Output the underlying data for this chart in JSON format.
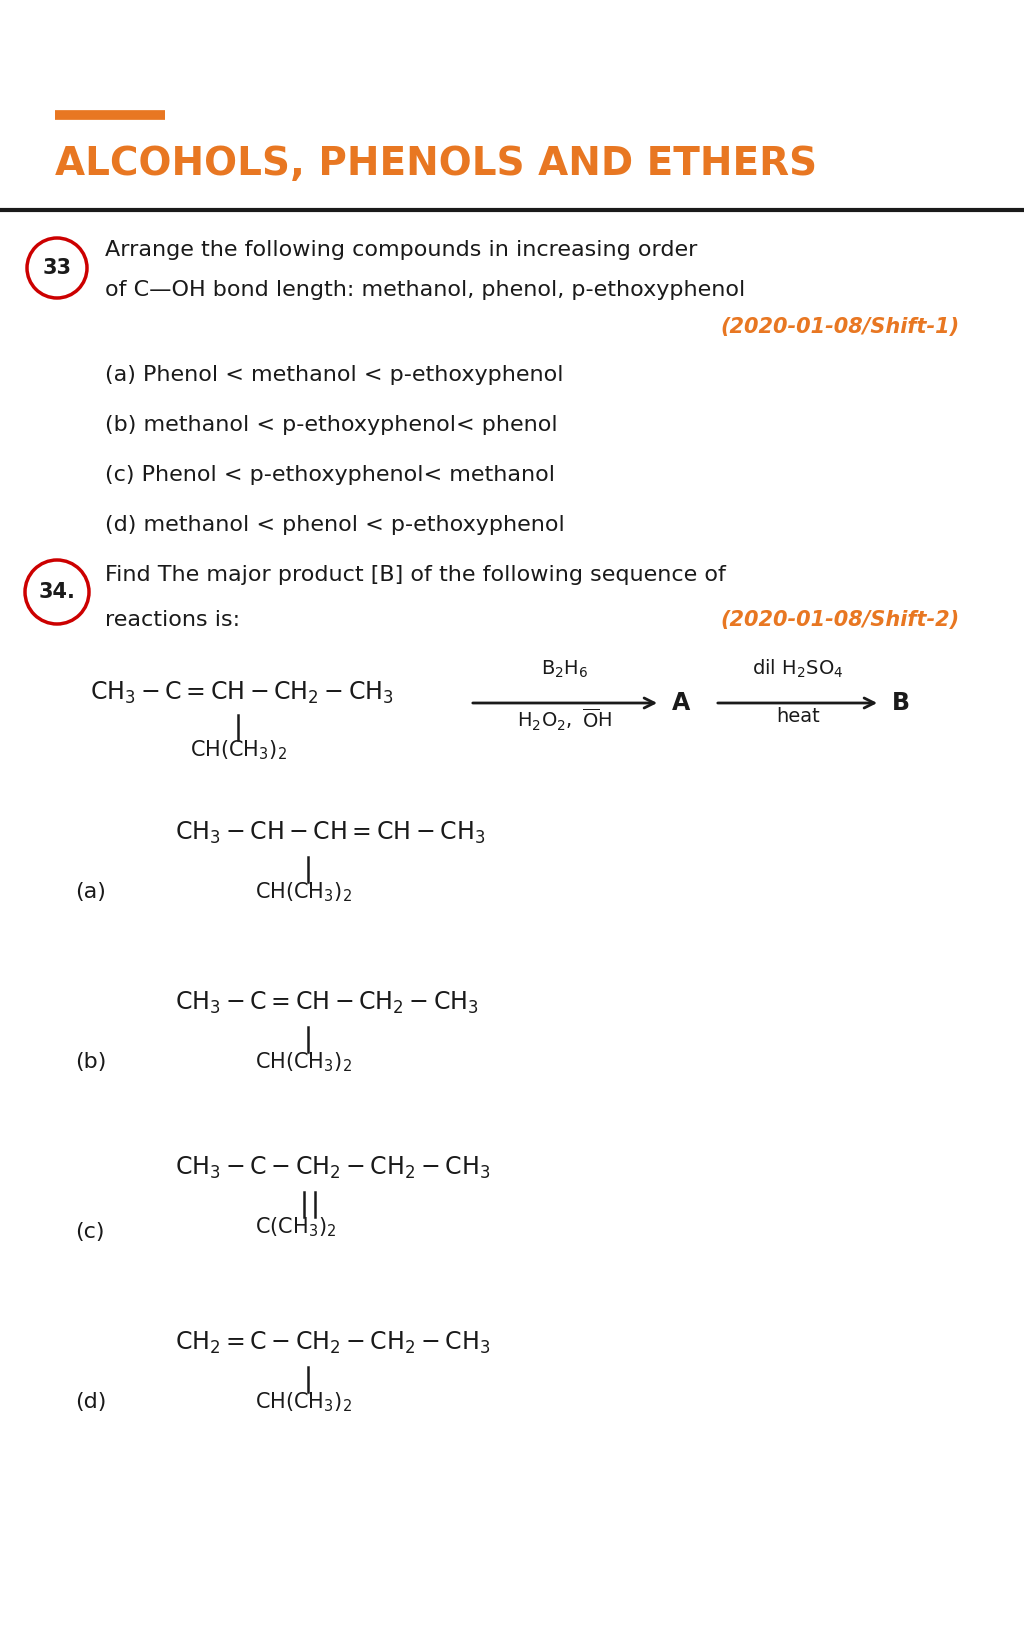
{
  "bg_color": "#ffffff",
  "orange_color": "#E87722",
  "black_color": "#1a1a1a",
  "red_circle_color": "#cc0000",
  "title_text": "ALCOHOLS, PHENOLS AND ETHERS",
  "q33_text1": "Arrange the following compounds in increasing order",
  "q33_text2": "of C—OH bond length: methanol, phenol, p-ethoxyphenol",
  "q33_shift": "(2020-01-08/Shift-1)",
  "q33_a": "(a) Phenol < methanol < p-ethoxyphenol",
  "q33_b": "(b) methanol < p-ethoxyphenol< phenol",
  "q33_c": "(c) Phenol < p-ethoxyphenol< methanol",
  "q33_d": "(d) methanol < phenol < p-ethoxyphenol",
  "q34_text1": "Find The major product [B] of the following sequence of",
  "q34_text2": "reactions is:",
  "q34_shift": "(2020-01-08/Shift-2)"
}
